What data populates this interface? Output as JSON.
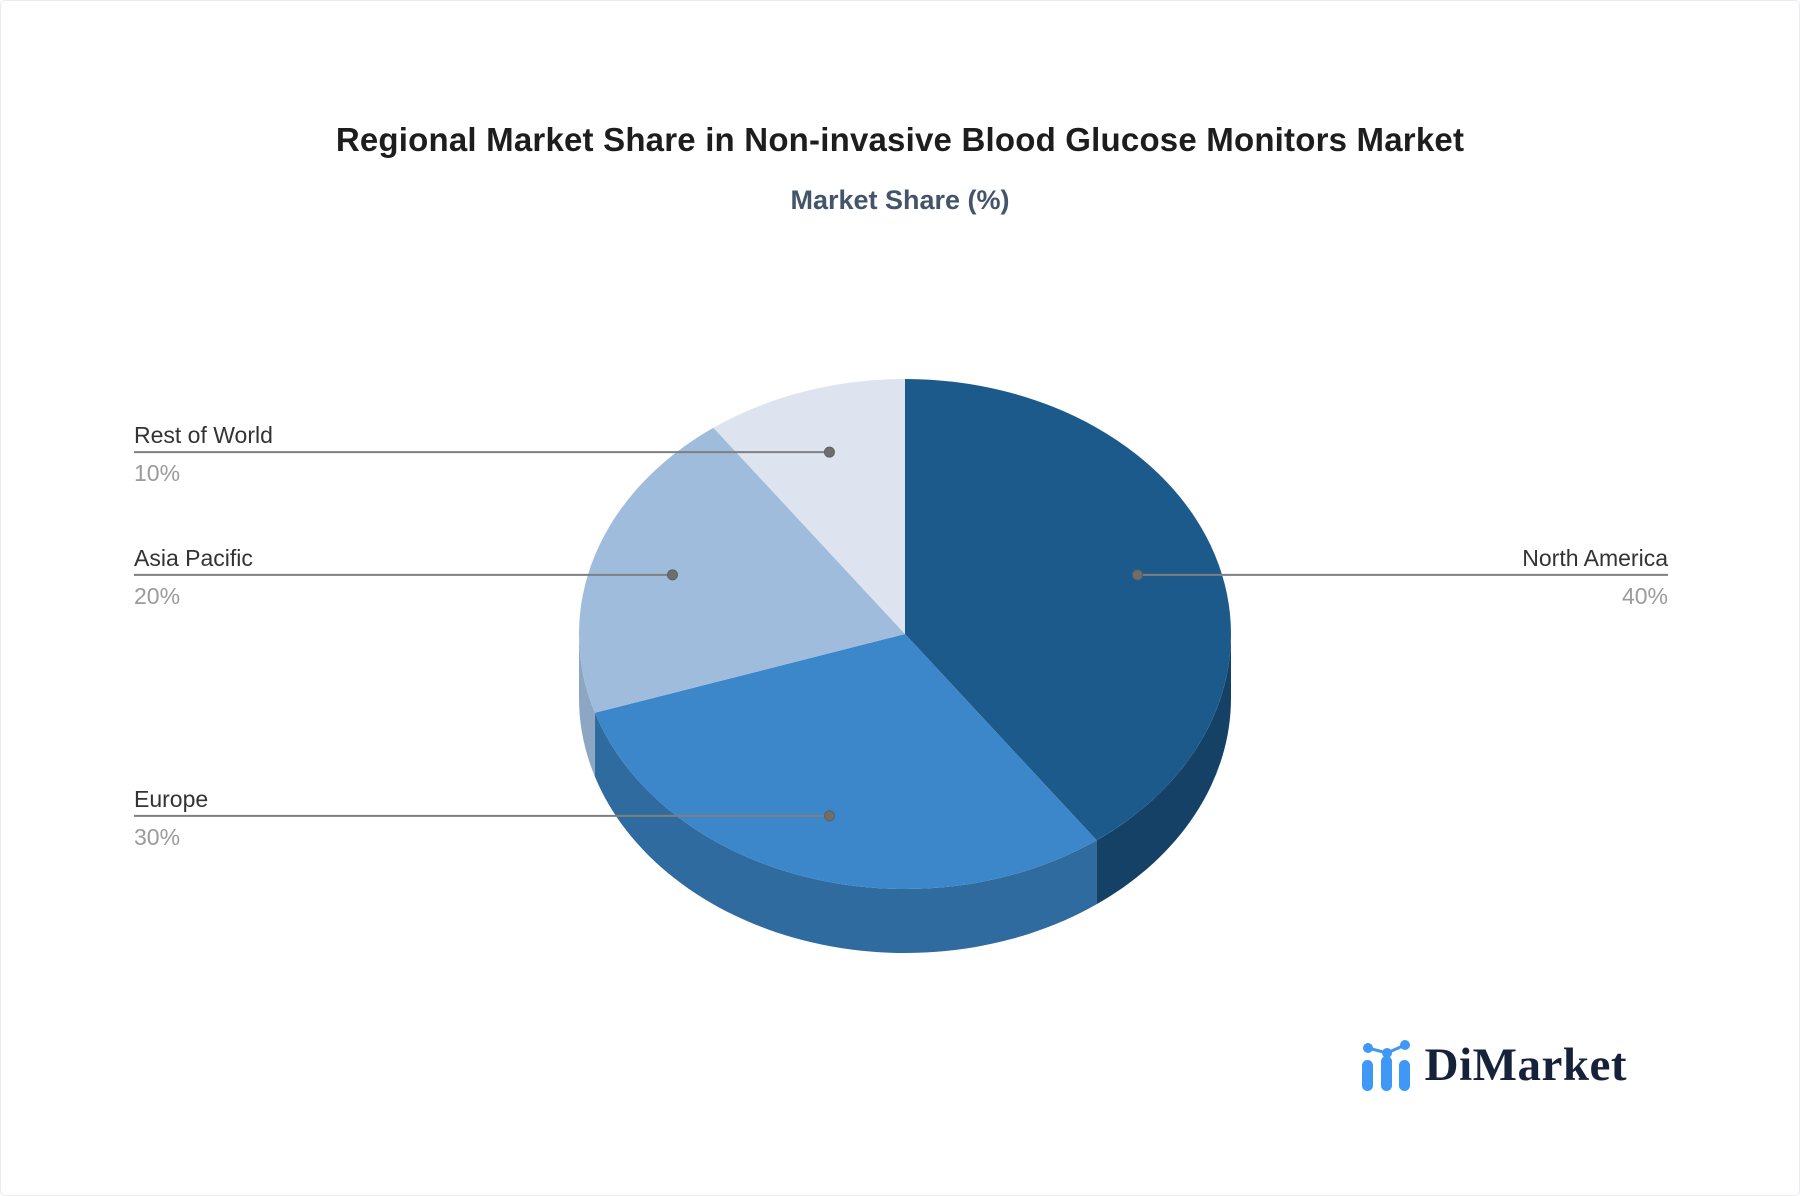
{
  "header": {
    "title": "Regional Market Share in Non-invasive Blood Glucose Monitors Market",
    "subtitle": "Market Share (%)"
  },
  "chart_data": {
    "type": "pie",
    "style": "3d",
    "title": "Regional Market Share in Non-invasive Blood Glucose Monitors Market",
    "subtitle": "Market Share (%)",
    "unit": "%",
    "start_angle": "12-o-clock",
    "direction": "clockwise",
    "legend_position": "none",
    "categories": [
      "North America",
      "Europe",
      "Asia Pacific",
      "Rest of World"
    ],
    "values": [
      40,
      30,
      20,
      10
    ],
    "display_values": [
      "40%",
      "30%",
      "20%",
      "10%"
    ],
    "slice_colors": [
      "#1d5a8c",
      "#3c87c9",
      "#a0bcdc",
      "#dde4ef"
    ],
    "slice_side_colors": [
      "#154166",
      "#2f6b9e",
      "#8ca6c3",
      "#c9d3e2"
    ],
    "leader_line_color": "#7f7f7f",
    "leader_dot_color": "#6e6e6e",
    "category_label_color": "#333333",
    "value_label_color": "#9b9b9b",
    "title_color": "#1d1d1d",
    "subtitle_color": "#44546a"
  },
  "footer": {
    "logo_text": "DiMarket",
    "logo_icon": "bar-chart-trend-icon",
    "logo_icon_color": "#3f97f6",
    "logo_text_color": "#16213b"
  }
}
